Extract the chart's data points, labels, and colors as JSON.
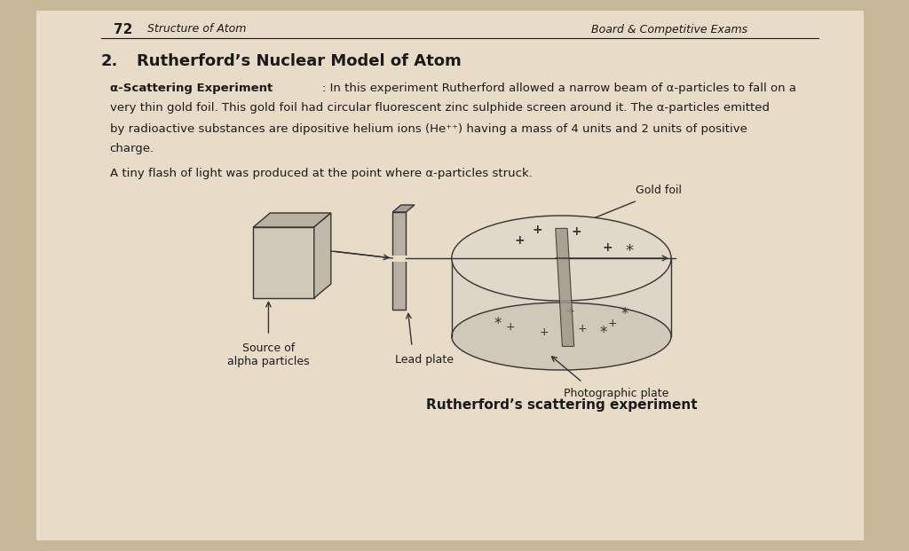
{
  "bg_color": "#c8b89a",
  "page_bg": "#e8dcc8",
  "text_color": "#1a1a1a",
  "diagram_color": "#333333",
  "header_num": "72",
  "header_title": "Structure of Atom",
  "header_right": "Board & Competitive Exams",
  "section_num": "2.",
  "section_title": "Rutherford’s Nuclear Model of Atom",
  "bold_label": "α-Scattering Experiment",
  "para1a": ": In this experiment Rutherford allowed a narrow beam of α-particles to fall on a",
  "para1b": "very thin gold foil. This gold foil had circular fluorescent zinc sulphide screen around it. The α-particles emitted",
  "para1c": "by radioactive substances are dipositive helium ions (He⁺⁺) having a mass of 4 units and 2 units of positive",
  "para1d": "charge.",
  "para2": "A tiny flash of light was produced at the point where α-particles struck.",
  "caption": "Rutherford’s scattering experiment",
  "label_source": "Source of\nalpha particles",
  "label_lead": "Lead plate",
  "label_photo": "Photographic plate",
  "label_gold": "Gold foil",
  "src_box_face": "#d0c8b8",
  "src_box_top": "#b8b0a0",
  "src_box_right": "#c0b8a8",
  "lead_face": "#b8b0a0",
  "lead_top": "#a8a098",
  "cyl_top_face": "#e0d8c8",
  "cyl_body": "#dcd4c4",
  "cyl_bot": "#d0c8b8",
  "gold_foil_face": "#a09888",
  "right_strip": "#d4968a"
}
